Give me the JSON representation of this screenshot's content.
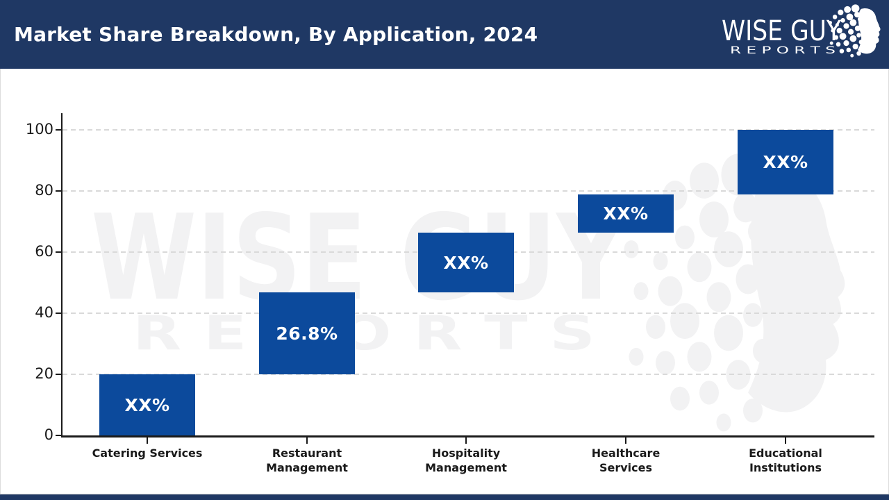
{
  "header": {
    "title": "Market Share Breakdown, By Application, 2024",
    "logo": {
      "name": "WISE GUY REPORTS",
      "line1": "WISE GUY",
      "line2": "R E P O R T S"
    }
  },
  "watermark": {
    "line1": "WISE GUY",
    "line2": "R E P O R T S"
  },
  "colors": {
    "header_bg": "#1f3864",
    "footer_bg": "#1f3864",
    "bar": "#0c4a9c",
    "bar_label_text": "#ffffff",
    "axis": "#1a1a1a",
    "grid": "#d9d9d9",
    "tick_text": "#1a1a1a",
    "watermark": "#f2f2f3",
    "title_text": "#ffffff"
  },
  "chart_data": {
    "type": "bar",
    "subtype": "waterfall (floating cumulative segments)",
    "title": "Market Share Breakdown, By Application, 2024",
    "categories": [
      "Catering Services",
      "Restaurant Management",
      "Hospitality Management",
      "Healthcare Services",
      "Educational Institutions"
    ],
    "category_lines": [
      [
        "Catering Services"
      ],
      [
        "Restaurant",
        "Management"
      ],
      [
        "Hospitality",
        "Management"
      ],
      [
        "Healthcare",
        "Services"
      ],
      [
        "Educational",
        "Institutions"
      ]
    ],
    "segments": [
      {
        "category": "Catering Services",
        "start": 0,
        "end": 20,
        "label": "XX%"
      },
      {
        "category": "Restaurant Management",
        "start": 20,
        "end": 46.8,
        "label": "26.8%"
      },
      {
        "category": "Hospitality Management",
        "start": 46.8,
        "end": 66.3,
        "label": "XX%"
      },
      {
        "category": "Healthcare Services",
        "start": 66.3,
        "end": 78.8,
        "label": "XX%"
      },
      {
        "category": "Educational Institutions",
        "start": 78.8,
        "end": 100,
        "label": "XX%"
      }
    ],
    "xlabel": "",
    "ylabel": "",
    "ylim": [
      0,
      100
    ],
    "yticks": [
      0,
      20,
      40,
      60,
      80,
      100
    ],
    "grid": "horizontal dashed",
    "legend": "none"
  }
}
